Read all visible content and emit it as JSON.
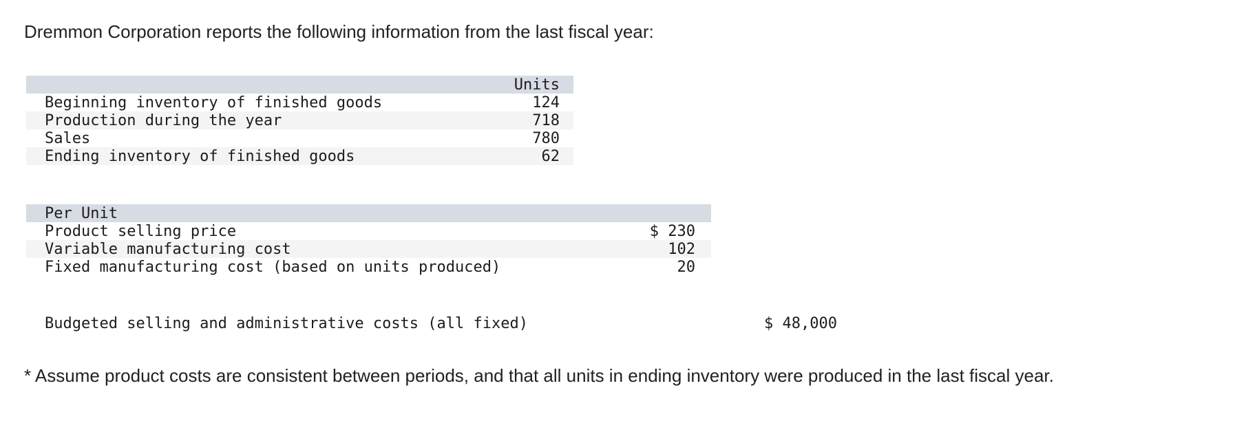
{
  "page": {
    "title": "Dremmon Corporation reports the following information from the last fiscal year:",
    "footnote": "* Assume product costs are consistent between periods, and that all units in ending inventory were produced in the last fiscal year."
  },
  "units_table": {
    "header": "Units",
    "rows": [
      {
        "label": "Beginning inventory of finished goods",
        "value": "124"
      },
      {
        "label": "Production during the year",
        "value": "718"
      },
      {
        "label": "Sales",
        "value": "780"
      },
      {
        "label": "Ending inventory of finished goods",
        "value": "62"
      }
    ]
  },
  "per_unit_table": {
    "header": "Per Unit",
    "rows": [
      {
        "label": "Product selling price",
        "value": "$ 230"
      },
      {
        "label": "Variable manufacturing cost",
        "value": "102"
      },
      {
        "label": "Fixed manufacturing cost (based on units produced)",
        "value": "20"
      }
    ]
  },
  "budget_line": {
    "label": "Budgeted selling and administrative costs (all fixed)",
    "value": "$ 48,000"
  },
  "colors": {
    "header_band": "#d7dbe3",
    "alt_row": "#f4f4f5",
    "body_text": "#202124",
    "table_text": "#1c1c1e",
    "background": "#ffffff"
  }
}
